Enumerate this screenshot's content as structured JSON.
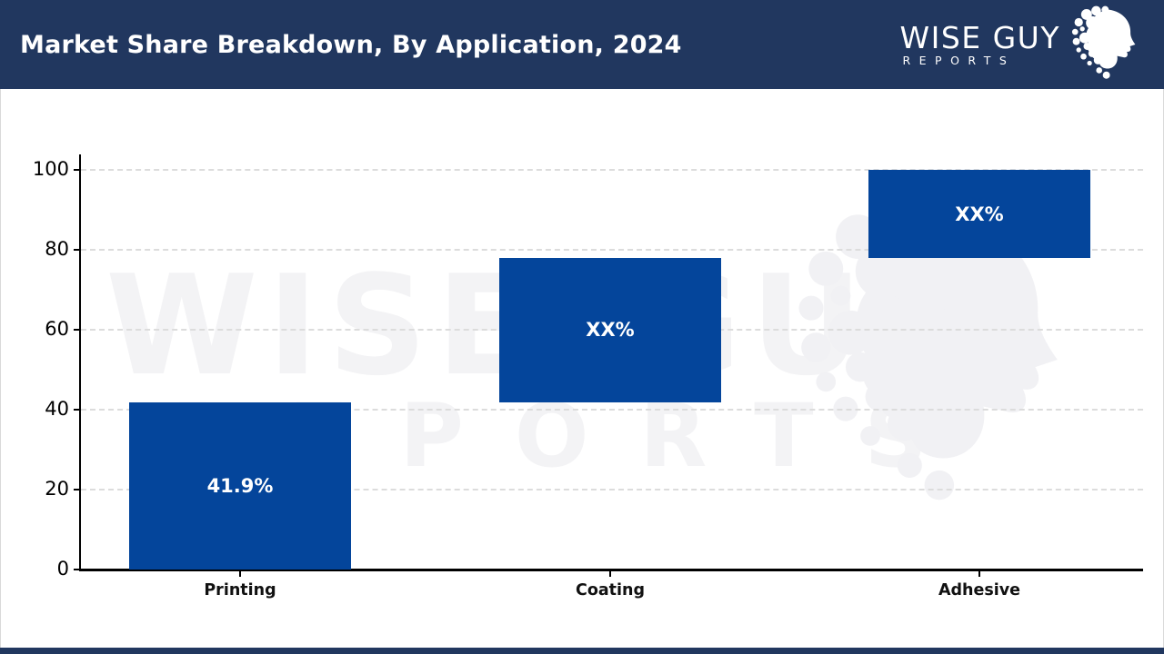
{
  "header": {
    "title": "Market Share Breakdown, By Application, 2024",
    "bg_color": "#21375F",
    "logo": {
      "name": "WISE GUY",
      "sub": "REPORTS"
    }
  },
  "watermark": {
    "line1": "WISE GUY",
    "line2": "REPORTS"
  },
  "chart_data": {
    "type": "bar",
    "subtype": "waterfall-stacked-breakdown",
    "title": "Market Share Breakdown, By Application, 2024",
    "categories": [
      "Printing",
      "Coating",
      "Adhesive"
    ],
    "segments": [
      {
        "category": "Printing",
        "start": 0,
        "end": 41.9,
        "label": "41.9%"
      },
      {
        "category": "Coating",
        "start": 41.9,
        "end": 77.9,
        "label": "XX%"
      },
      {
        "category": "Adhesive",
        "start": 77.9,
        "end": 100,
        "label": "XX%"
      }
    ],
    "xlabel": "",
    "ylabel": "",
    "ylim": [
      0,
      100
    ],
    "yticks": [
      0,
      20,
      40,
      60,
      80,
      100
    ],
    "grid": "horizontal-dashed",
    "legend": "none",
    "bar_color": "#04459B",
    "bar_label_color": "#FFFFFF",
    "axis_color": "#000000",
    "grid_color": "#DCDCDC"
  },
  "footer": {
    "bg_color": "#21375F"
  }
}
